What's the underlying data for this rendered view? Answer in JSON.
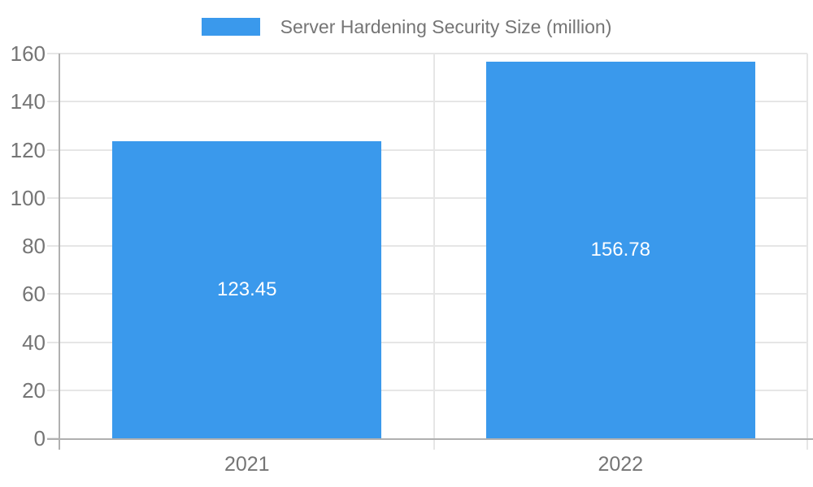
{
  "colors": {
    "accent": "#3A99EC",
    "grid": "#E6E6E6",
    "axis": "#B0B0B0",
    "muted_text": "#757575",
    "value_text": "#FFFFFF",
    "background": "#FFFFFF"
  },
  "legend": {
    "label": "Server Hardening Security Size (million)"
  },
  "chart_data": {
    "type": "bar",
    "title": "Server Hardening Security Size (million)",
    "categories": [
      "2021",
      "2022"
    ],
    "values": [
      123.45,
      156.78
    ],
    "value_labels": [
      "123.45",
      "156.78"
    ],
    "ylim": [
      0,
      160
    ],
    "yticks": [
      0,
      20,
      40,
      60,
      80,
      100,
      120,
      140,
      160
    ],
    "grid": true,
    "legend_position": "top",
    "bar_width_ratio": 0.72,
    "bar_color": "#3A99EC"
  }
}
